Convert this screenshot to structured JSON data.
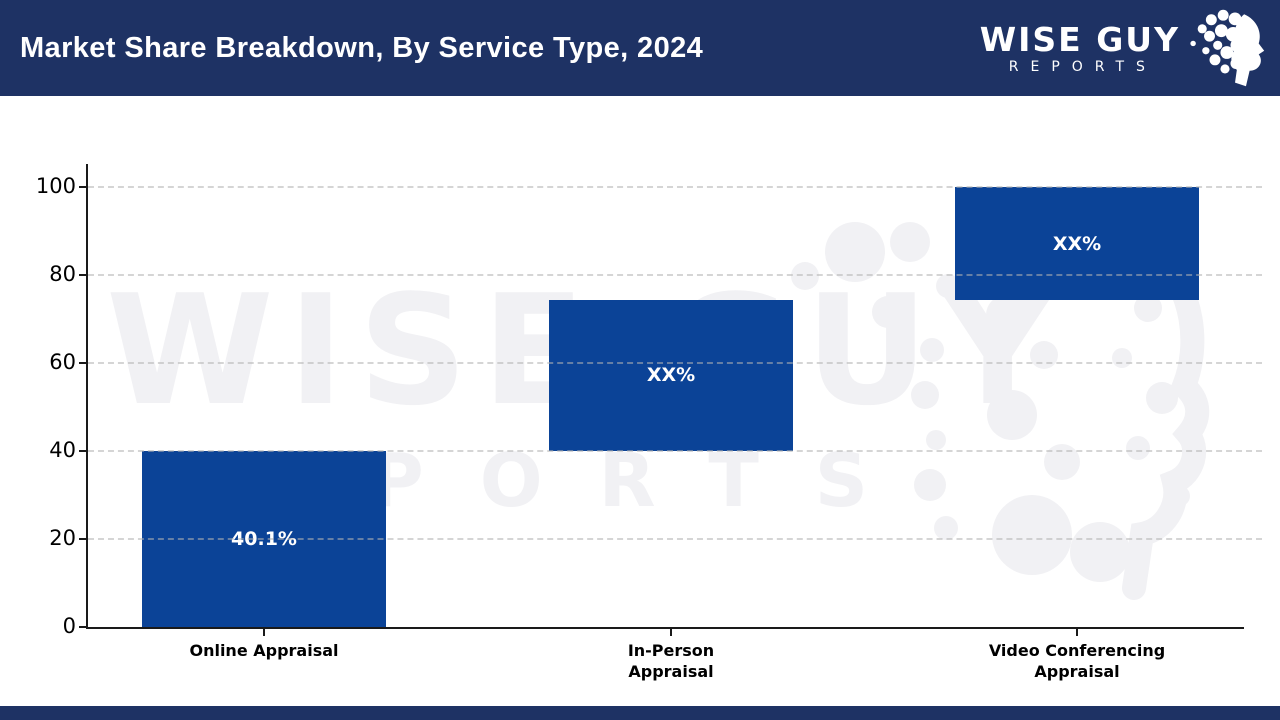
{
  "page": {
    "background": "#ffffff",
    "accent_navy": "#1e3264",
    "bar_blue": "#0b4397",
    "watermark_color": "#f1f1f4"
  },
  "header": {
    "title": "Market Share Breakdown, By Service Type, 2024",
    "logo_line1": "WISE GUY",
    "logo_line2": "REPORTS"
  },
  "watermark": {
    "line1": "WISE GUY",
    "line2": "REPORTS"
  },
  "chart_data": {
    "type": "bar",
    "variant": "progressive-stacked (each bar begins where the previous one ends)",
    "title": "Market Share Breakdown, By Service Type, 2024",
    "categories": [
      "Online Appraisal",
      "In-Person Appraisal",
      "Video Conferencing Appraisal"
    ],
    "category_lines": [
      [
        "Online Appraisal"
      ],
      [
        "In-Person",
        "Appraisal"
      ],
      [
        "Video Conferencing",
        "Appraisal"
      ]
    ],
    "segments": [
      {
        "category": "Online Appraisal",
        "start": 0,
        "end": 40.1,
        "value": 40.1,
        "label": "40.1%"
      },
      {
        "category": "In-Person Appraisal",
        "start": 40.1,
        "end": 74.3,
        "value": 34.2,
        "label": "XX%"
      },
      {
        "category": "Video Conferencing Appraisal",
        "start": 74.3,
        "end": 100,
        "value": 25.7,
        "label": "XX%"
      }
    ],
    "xlabel": "",
    "ylabel": "",
    "yticks": [
      0,
      20,
      40,
      60,
      80,
      100
    ],
    "ylim": [
      0,
      105
    ],
    "grid": "horizontal dashed, drawn over bars",
    "legend": "none",
    "bar_color": "#0b4397",
    "bar_label_color": "#ffffff"
  }
}
